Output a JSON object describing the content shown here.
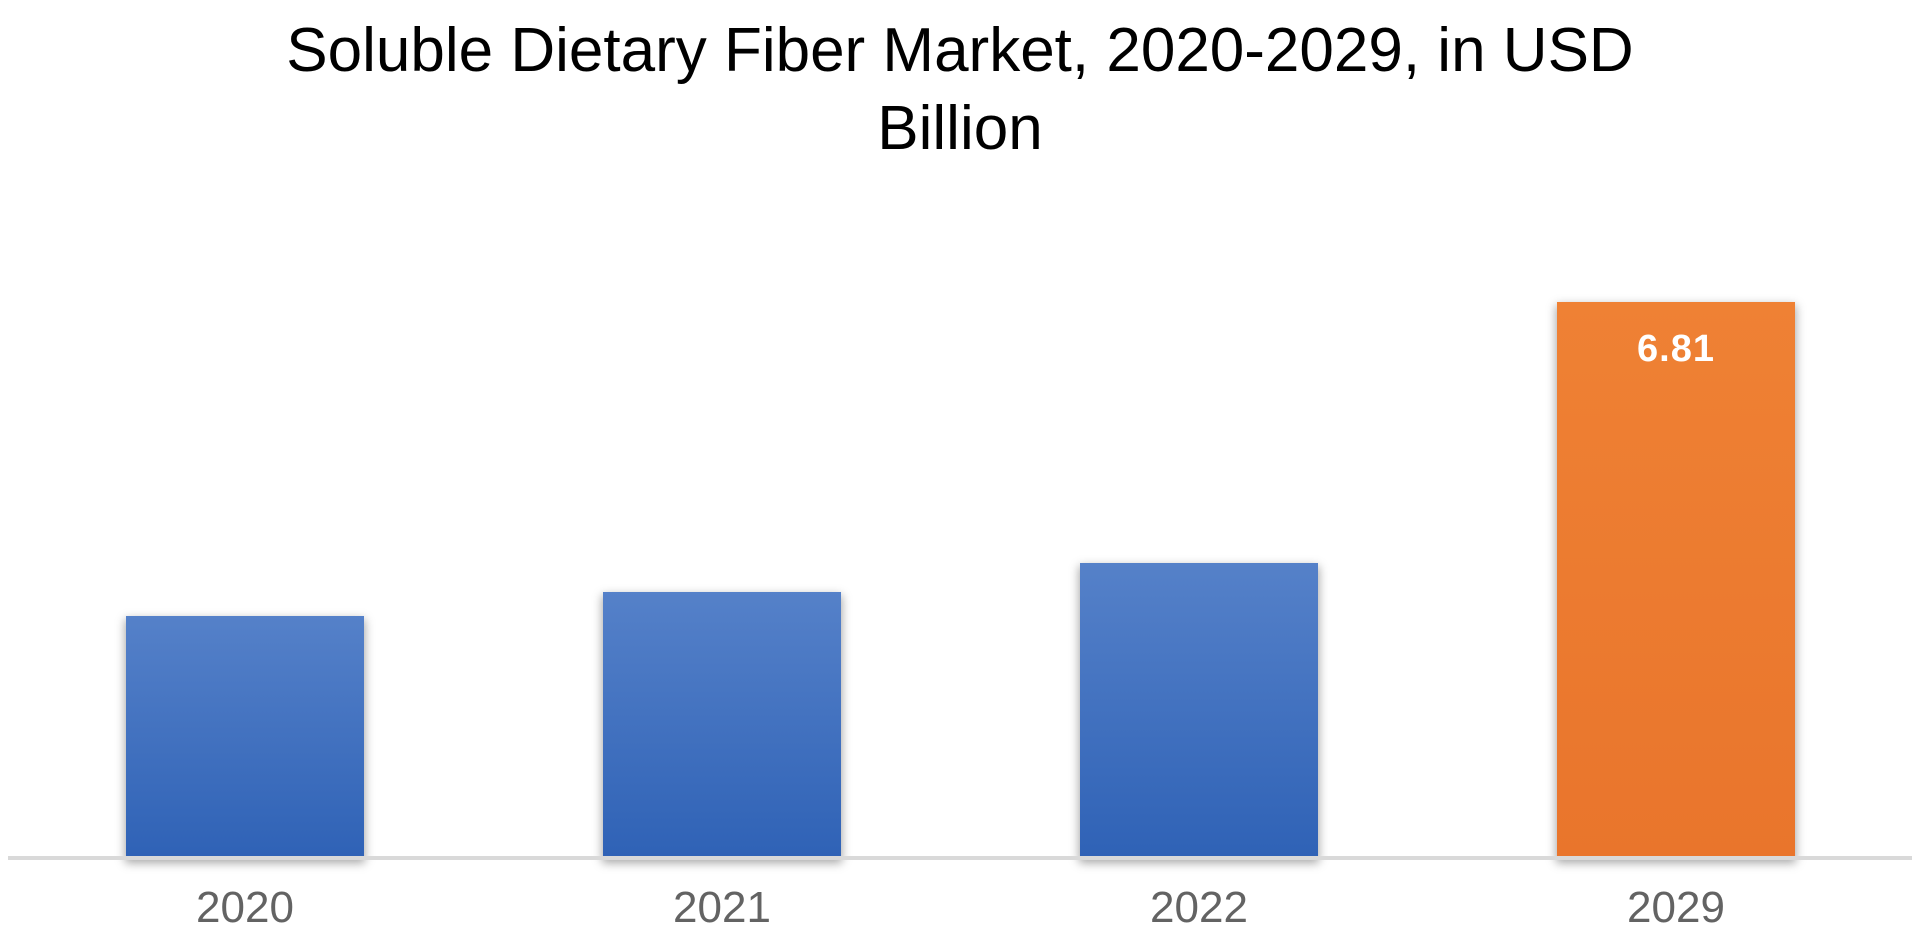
{
  "title": {
    "line1": "Soluble Dietary Fiber Market, 2020-2029, in USD",
    "line2": "Billion"
  },
  "chart_data": {
    "type": "bar",
    "title": "Soluble Dietary Fiber Market, 2020-2029, in USD Billion",
    "unit": "USD Billion",
    "categories": [
      "2020",
      "2021",
      "2022",
      "2029"
    ],
    "values": [
      2.97,
      3.26,
      3.61,
      6.81
    ],
    "data_labels": [
      "",
      "",
      "",
      "6.81"
    ],
    "bar_styles": [
      {
        "top": "#5581C9",
        "bottom": "#2F62B6"
      },
      {
        "top": "#5581C9",
        "bottom": "#2F62B6"
      },
      {
        "top": "#5581C9",
        "bottom": "#2F62B6"
      },
      {
        "top": "#EF8134",
        "bottom": "#E9752C"
      }
    ],
    "base_colors": {
      "series": "#4472C4",
      "highlight": "#ED7D31"
    },
    "xlabel": "",
    "ylabel": "",
    "ylim": [
      0,
      7
    ],
    "y_axis_visible": false,
    "gridlines": false,
    "legend": "none",
    "axis_line_color": "#D9D9D9",
    "category_label_color": "#636363",
    "data_label_color": "#FFFFFF",
    "title_color": "#000000",
    "background": "#FFFFFF"
  }
}
